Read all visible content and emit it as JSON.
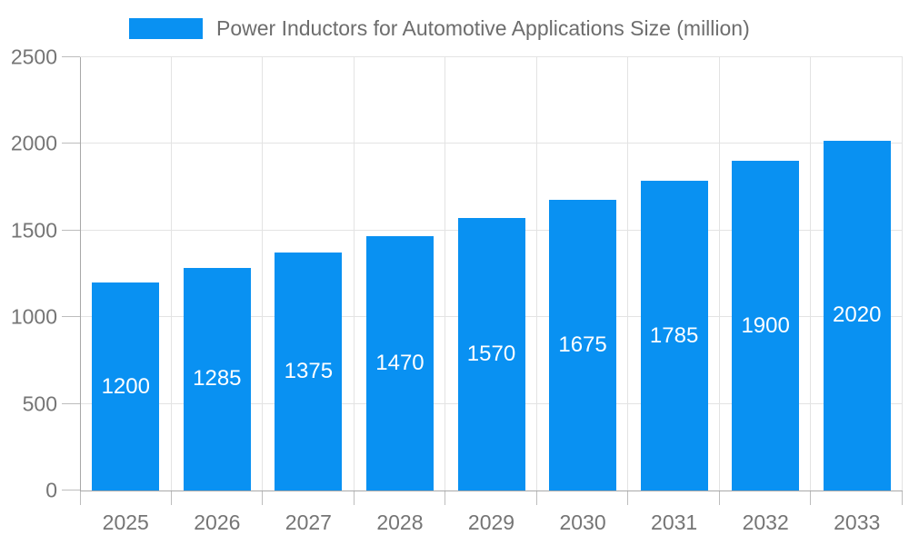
{
  "legend": {
    "label": "Power Inductors for Automotive Applications Size (million)"
  },
  "chart_data": {
    "type": "bar",
    "title": "Power Inductors for Automotive Applications Size (million)",
    "categories": [
      "2025",
      "2026",
      "2027",
      "2028",
      "2029",
      "2030",
      "2031",
      "2032",
      "2033"
    ],
    "values": [
      1200,
      1285,
      1375,
      1470,
      1570,
      1675,
      1785,
      1900,
      2020
    ],
    "xlabel": "",
    "ylabel": "",
    "ylim": [
      0,
      2500
    ],
    "yticks": [
      0,
      500,
      1000,
      1500,
      2000,
      2500
    ],
    "grid": true,
    "legend_position": "top",
    "value_labels": "inside-center"
  },
  "colors": {
    "bar": "#0991f2",
    "grid": "#e3e3e3",
    "axis": "#a8a8a8",
    "tick": "#bdbdbd",
    "tick_text": "#757575",
    "title_text": "#6d6d6d",
    "value_text": "#ffffff",
    "background": "#ffffff"
  }
}
